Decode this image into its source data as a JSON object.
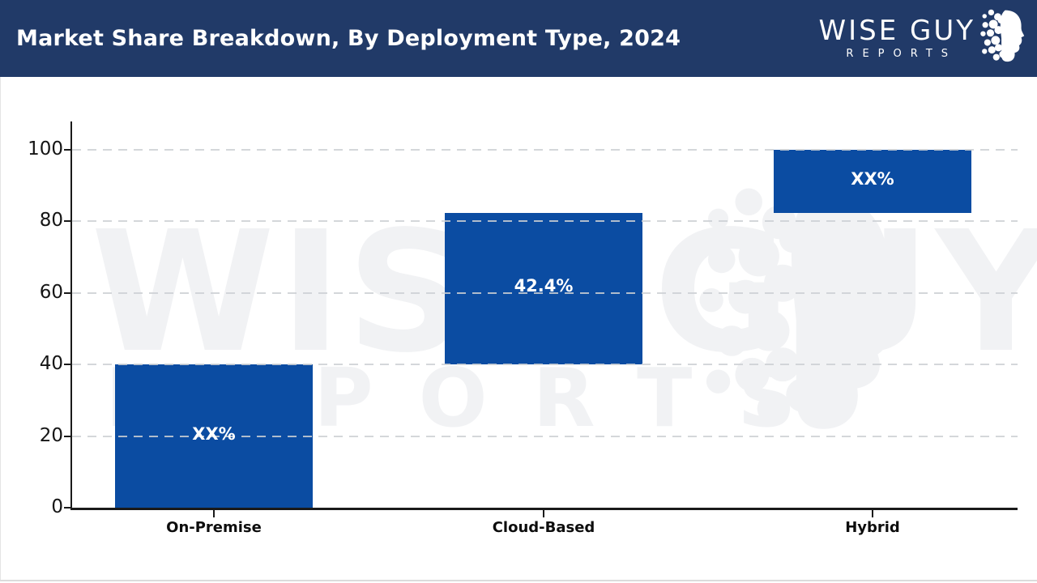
{
  "header": {
    "title": "Market Share Breakdown, By Deployment Type, 2024",
    "logo": {
      "brand_line1": "WISE GUY",
      "brand_line2": "REPORTS"
    }
  },
  "watermark": {
    "line1": "WISE GUY",
    "line2": "REPORTS"
  },
  "chart_data": {
    "type": "bar",
    "subtype": "floating-segment-waterfall",
    "title": "Market Share Breakdown, By Deployment Type, 2024",
    "categories": [
      "On-Premise",
      "Cloud-Based",
      "Hybrid"
    ],
    "series": [
      {
        "name": "Market share (%)",
        "segments": [
          {
            "category": "On-Premise",
            "start": 0,
            "end": 40,
            "value": 40,
            "label": "XX%"
          },
          {
            "category": "Cloud-Based",
            "start": 40,
            "end": 82.4,
            "value": 42.4,
            "label": "42.4%"
          },
          {
            "category": "Hybrid",
            "start": 82.4,
            "end": 100,
            "value": 17.6,
            "label": "XX%"
          }
        ]
      }
    ],
    "xlabel": "",
    "ylabel": "",
    "yticks": [
      0,
      20,
      40,
      60,
      80,
      100
    ],
    "ylim": [
      0,
      108
    ],
    "grid": "horizontal dashed, drawn over bars",
    "legend": "none"
  },
  "colors": {
    "header_bg": "#213a68",
    "bar": "#0b4ca2",
    "grid": "#d4d7da",
    "axis": "#1a1a1a",
    "tick_label": "#151515",
    "bar_label": "#ffffff",
    "watermark": "#f1f2f4",
    "page_bg": "#ffffff",
    "edge_rule": "#dcdcdc"
  }
}
